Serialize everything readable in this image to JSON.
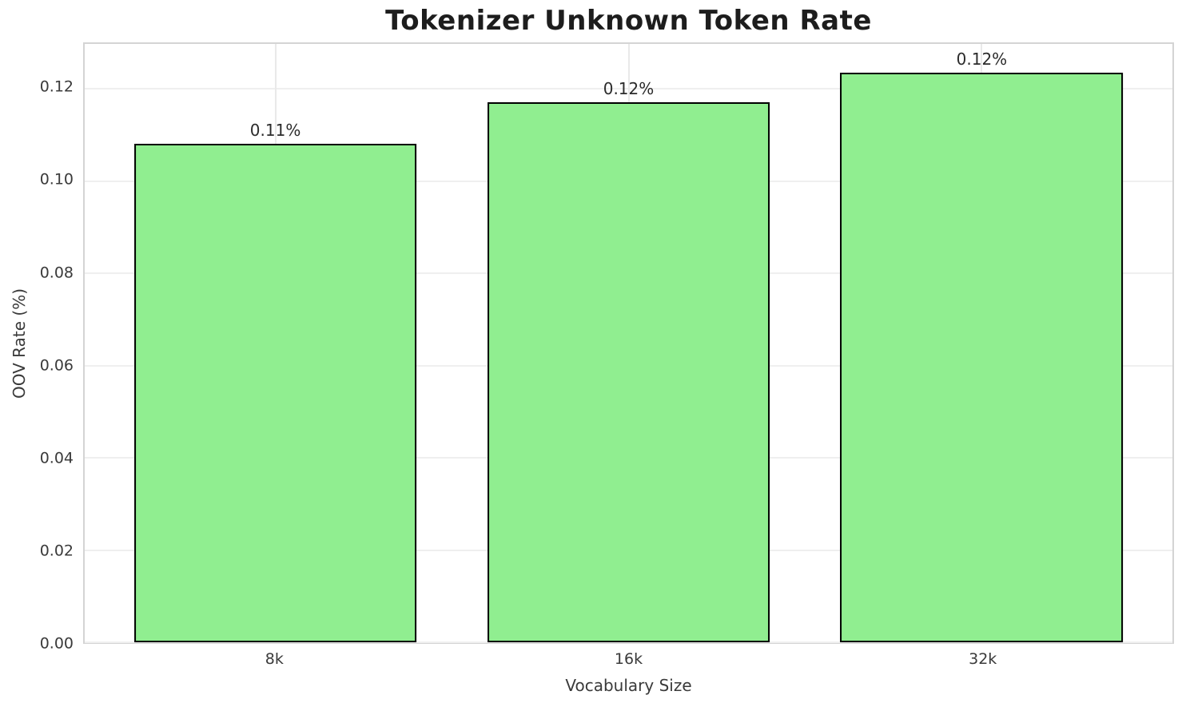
{
  "chart_data": {
    "type": "bar",
    "title": "Tokenizer Unknown Token Rate",
    "xlabel": "Vocabulary Size",
    "ylabel": "OOV Rate (%)",
    "categories": [
      "8k",
      "16k",
      "32k"
    ],
    "values": [
      0.108,
      0.117,
      0.1235
    ],
    "bar_labels": [
      "0.11%",
      "0.12%",
      "0.12%"
    ],
    "ytick_labels": [
      "0.00",
      "0.02",
      "0.04",
      "0.06",
      "0.08",
      "0.10",
      "0.12"
    ],
    "ylim": [
      0,
      0.1297
    ],
    "grid": true,
    "legend_position": "none",
    "bar_color": "#90ee90",
    "bar_edge_color": "#000000"
  }
}
